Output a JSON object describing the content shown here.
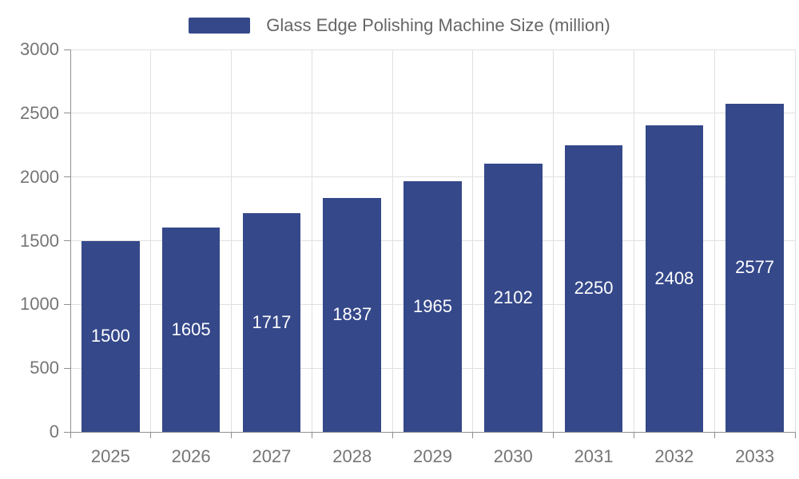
{
  "legend": {
    "label": "Glass Edge Polishing Machine Size (million)"
  },
  "chart_data": {
    "type": "bar",
    "title": "",
    "xlabel": "",
    "ylabel": "",
    "categories": [
      "2025",
      "2026",
      "2027",
      "2028",
      "2029",
      "2030",
      "2031",
      "2032",
      "2033"
    ],
    "series": [
      {
        "name": "Glass Edge Polishing Machine Size (million)",
        "values": [
          1500,
          1605,
          1717,
          1837,
          1965,
          2102,
          2250,
          2408,
          2577
        ]
      }
    ],
    "ylim": [
      0,
      3000
    ],
    "yticks": [
      0,
      500,
      1000,
      1500,
      2000,
      2500,
      3000
    ],
    "grid": true,
    "legend_position": "top-center",
    "value_labels": "inside-center",
    "colors": {
      "bar": "#35488a",
      "grid_line": "#e0e0e0",
      "axis_line": "#909090",
      "tick_label": "#757575",
      "legend_label": "#666666",
      "value_label": "#ffffff",
      "background": "#ffffff"
    }
  }
}
